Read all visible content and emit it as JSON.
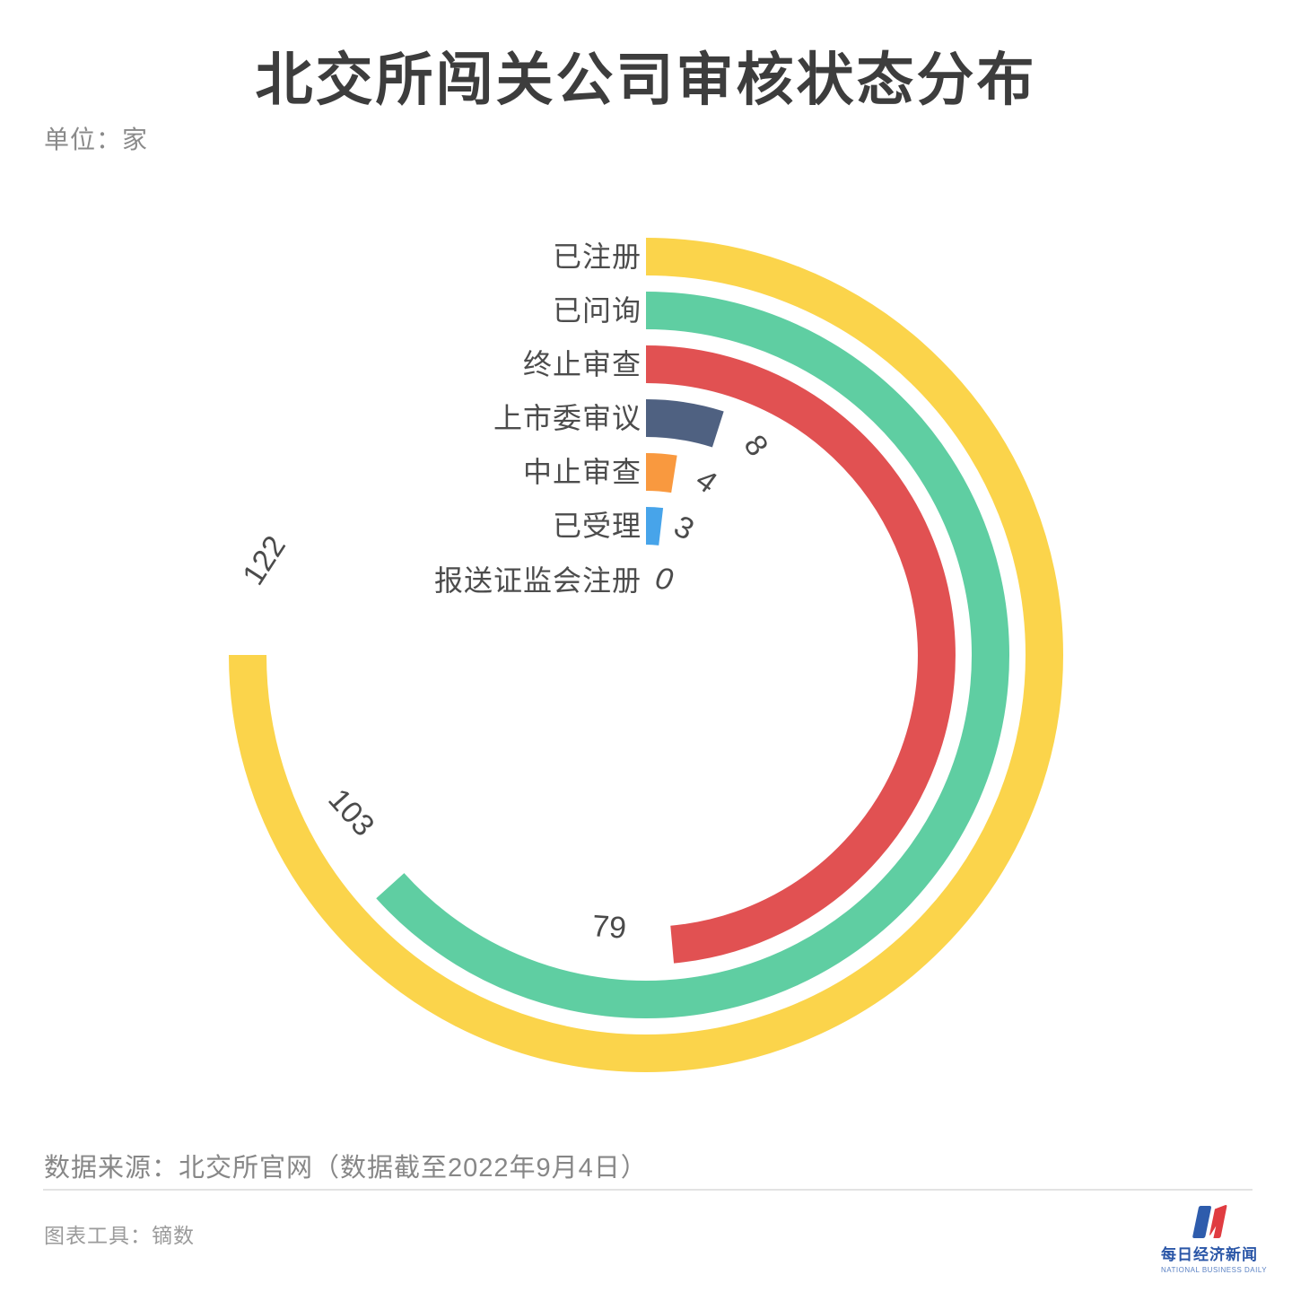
{
  "header": {
    "title": "北交所闯关公司审核状态分布",
    "unit_label": "单位：家"
  },
  "chart_data": {
    "type": "bar",
    "variant": "radial-circular-bars",
    "title": "北交所闯关公司审核状态分布",
    "unit": "家",
    "categories": [
      "已注册",
      "已问询",
      "终止审查",
      "上市委审议",
      "中止审查",
      "已受理",
      "报送证监会注册"
    ],
    "values": [
      122,
      103,
      79,
      8,
      4,
      3,
      0
    ],
    "colors": [
      "#FBD44B",
      "#5FCEA2",
      "#E15152",
      "#4F6181",
      "#F9993F",
      "#47A4EA",
      "#CCCCCC"
    ],
    "max_value": 122,
    "max_angle_deg": 270,
    "start_angle": "12-o'clock, clockwise",
    "legend": "none (labels at ring starts, values at ring ends)"
  },
  "footer": {
    "source": "数据来源：北交所官网（数据截至2022年9月4日）",
    "tool": "图表工具：镝数"
  },
  "logo": {
    "name_cn": "每日经济新闻",
    "name_en": "NATIONAL BUSINESS DAILY",
    "mark_blue": "#2E5CAC",
    "mark_red": "#E03C41"
  }
}
